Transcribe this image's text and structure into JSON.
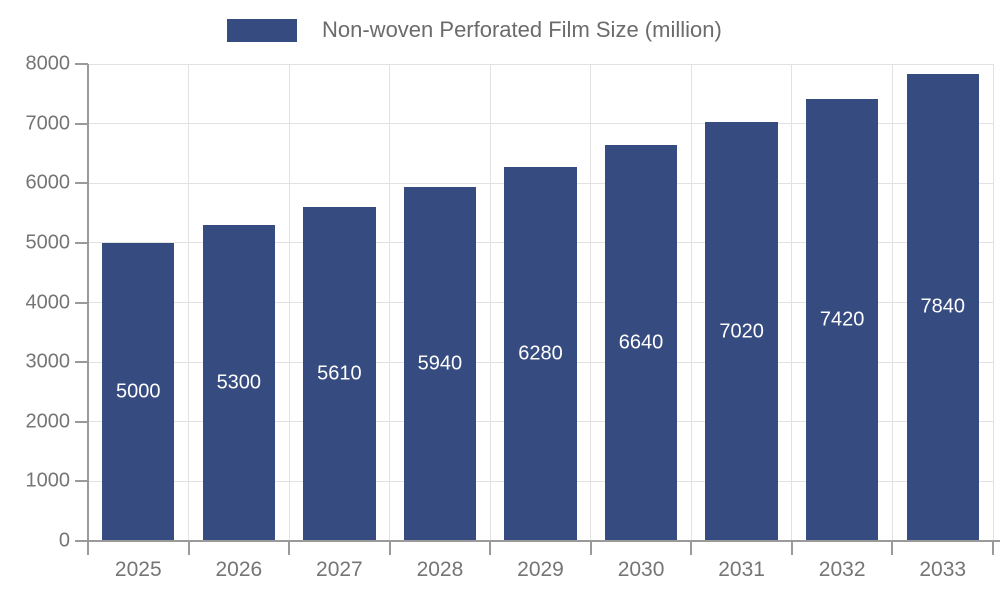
{
  "chart_data": {
    "type": "bar",
    "title": "",
    "legend": {
      "label": "Non-woven Perforated Film Size (million)",
      "position": "top-center"
    },
    "categories": [
      "2025",
      "2026",
      "2027",
      "2028",
      "2029",
      "2030",
      "2031",
      "2032",
      "2033"
    ],
    "series": [
      {
        "name": "Non-woven Perforated Film Size (million)",
        "values": [
          5000,
          5300,
          5610,
          5940,
          6280,
          6640,
          7020,
          7420,
          7840
        ]
      }
    ],
    "bar_labels": [
      5000,
      5300,
      5610,
      5940,
      6280,
      6640,
      7020,
      7420,
      7840
    ],
    "xlabel": "",
    "ylabel": "",
    "ylim": [
      0,
      8000
    ],
    "yticks": [
      0,
      1000,
      2000,
      3000,
      4000,
      5000,
      6000,
      7000,
      8000
    ],
    "grid": true,
    "colors": {
      "bar": "#364B80",
      "grid": "#e2e2e2",
      "axis": "#9a9a9a",
      "tick_text": "#757575",
      "legend_text": "#6b6b6b",
      "bar_label_text": "#ffffff",
      "background": "#ffffff"
    }
  }
}
